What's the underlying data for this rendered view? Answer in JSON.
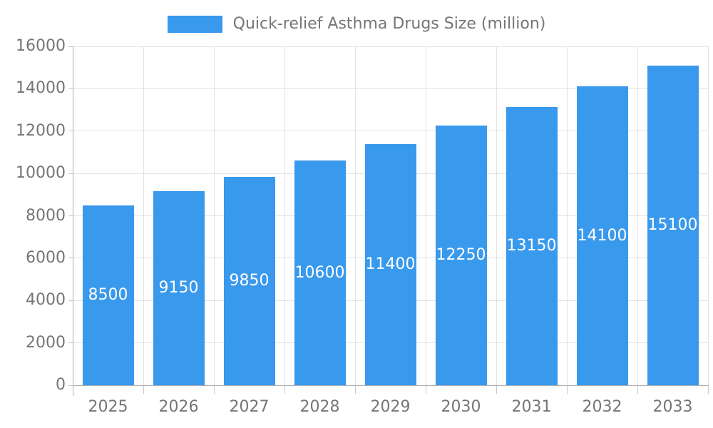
{
  "chart_data": {
    "type": "bar",
    "title": "",
    "legend": {
      "label": "Quick-relief Asthma Drugs Size (million)",
      "position": "top"
    },
    "categories": [
      "2025",
      "2026",
      "2027",
      "2028",
      "2029",
      "2030",
      "2031",
      "2032",
      "2033"
    ],
    "values": [
      8500,
      9150,
      9850,
      10600,
      11400,
      12250,
      13150,
      14100,
      15100
    ],
    "xlabel": "",
    "ylabel": "",
    "ylim": [
      0,
      16000
    ],
    "ytick_step": 2000,
    "ytick_labels": [
      "0",
      "2000",
      "4000",
      "6000",
      "8000",
      "10000",
      "12000",
      "14000",
      "16000"
    ],
    "grid": "both",
    "colors": {
      "bar": "#3999EC",
      "bar_value_label": "#FFFFFF",
      "axis_text": "#757575",
      "grid_line": "#E3E3E3",
      "axis_line": "#AFAFAF",
      "tick_mark": "#C9C9C9",
      "background": "#FFFFFF"
    }
  }
}
